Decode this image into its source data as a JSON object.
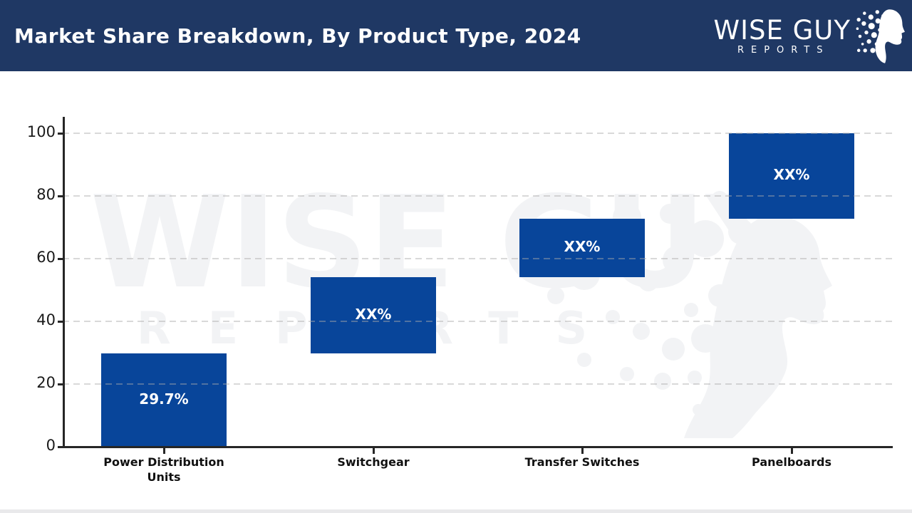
{
  "header": {
    "title": "Market Share Breakdown, By Product Type, 2024",
    "logo": {
      "line1": "WISE GUY",
      "line2": "REPORTS"
    }
  },
  "watermark": {
    "line1": "WISE GUY",
    "line2": "REPORTS"
  },
  "chart_data": {
    "type": "bar",
    "subtype": "waterfall",
    "title": "Market Share Breakdown, By Product Type, 2024",
    "categories": [
      "Power Distribution Units",
      "Switchgear",
      "Transfer Switches",
      "Panelboards"
    ],
    "bars": [
      {
        "category": "Power Distribution Units",
        "start": 0,
        "end": 29.7,
        "label": "29.7%"
      },
      {
        "category": "Switchgear",
        "start": 29.7,
        "end": 54.1,
        "label": "XX%"
      },
      {
        "category": "Transfer Switches",
        "start": 54.1,
        "end": 72.7,
        "label": "XX%"
      },
      {
        "category": "Panelboards",
        "start": 72.7,
        "end": 100,
        "label": "XX%"
      }
    ],
    "yticks": [
      0,
      20,
      40,
      60,
      80,
      100
    ],
    "ylim": [
      0,
      105
    ],
    "grid": "horizontal-dashed",
    "legend": "none",
    "bar_color": "#08459a",
    "header_bg": "#1f3864",
    "value_label_color": "#ffffff"
  }
}
